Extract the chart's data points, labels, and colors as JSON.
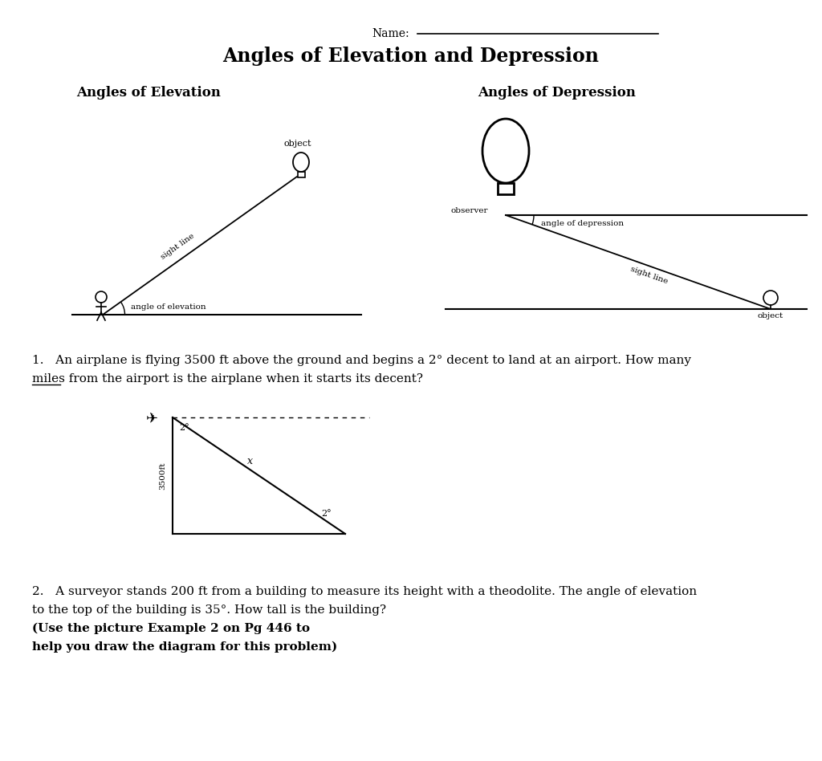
{
  "title": "Angles of Elevation and Depression",
  "name_label": "Name:",
  "section1_title": "Angles of Elevation",
  "section2_title": "Angles of Depression",
  "q1_line1": "1.   An airplane is flying 3500 ft above the ground and begins a 2° decent to land at an airport. How many",
  "q1_line2": "miles from the airport is the airplane when it starts its decent?",
  "q2_line1": "2.   A surveyor stands 200 ft from a building to measure its height with a theodolite. The angle of elevation",
  "q2_line2": "to the top of the building is 35°. How tall is the building? ",
  "q2_bold1": "(Use the picture Example 2 on Pg 446 to",
  "q2_bold2": "help you draw the diagram for this problem)",
  "bg_color": "#ffffff",
  "text_color": "#000000"
}
